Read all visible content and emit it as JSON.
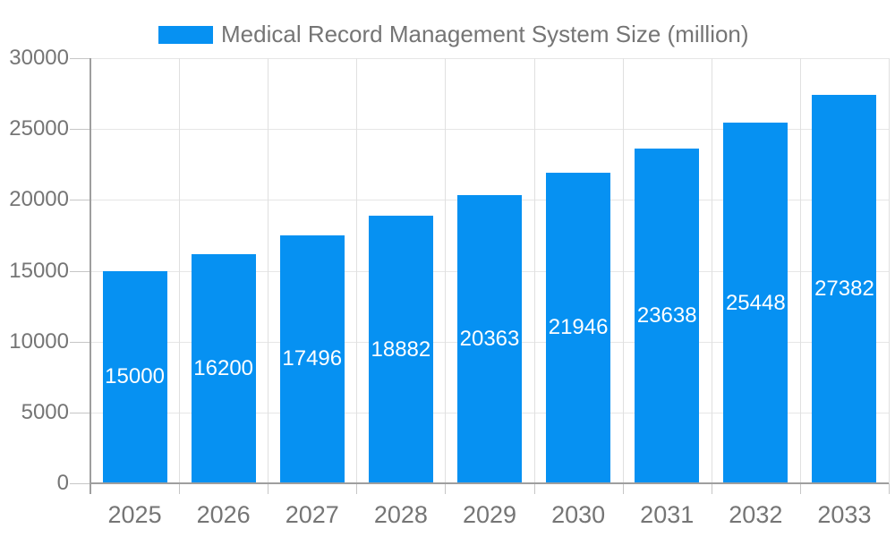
{
  "chart_data": {
    "type": "bar",
    "title": "Medical Record Management System Size (million)",
    "categories": [
      "2025",
      "2026",
      "2027",
      "2028",
      "2029",
      "2030",
      "2031",
      "2032",
      "2033"
    ],
    "values": [
      15000,
      16200,
      17496,
      18882,
      20363,
      21946,
      23638,
      25448,
      27382
    ],
    "series": [
      {
        "name": "Medical Record Management System Size (million)",
        "values": [
          15000,
          16200,
          17496,
          18882,
          20363,
          21946,
          23638,
          25448,
          27382
        ]
      }
    ],
    "xlabel": "",
    "ylabel": "",
    "ylim": [
      0,
      30000
    ],
    "yticks": [
      0,
      5000,
      10000,
      15000,
      20000,
      25000,
      30000
    ],
    "grid": true,
    "legend_position": "top",
    "value_labels": "inside-center",
    "colors": {
      "bar": "#0691f2",
      "value_text": "#ffffff",
      "axis_text": "#757575",
      "gridline_horizontal": "#e6e6e6",
      "gridline_vertical": "#e0e0e0",
      "tick": "#c6c6c6",
      "axis_line": "#9e9e9e",
      "background": "#ffffff"
    }
  }
}
